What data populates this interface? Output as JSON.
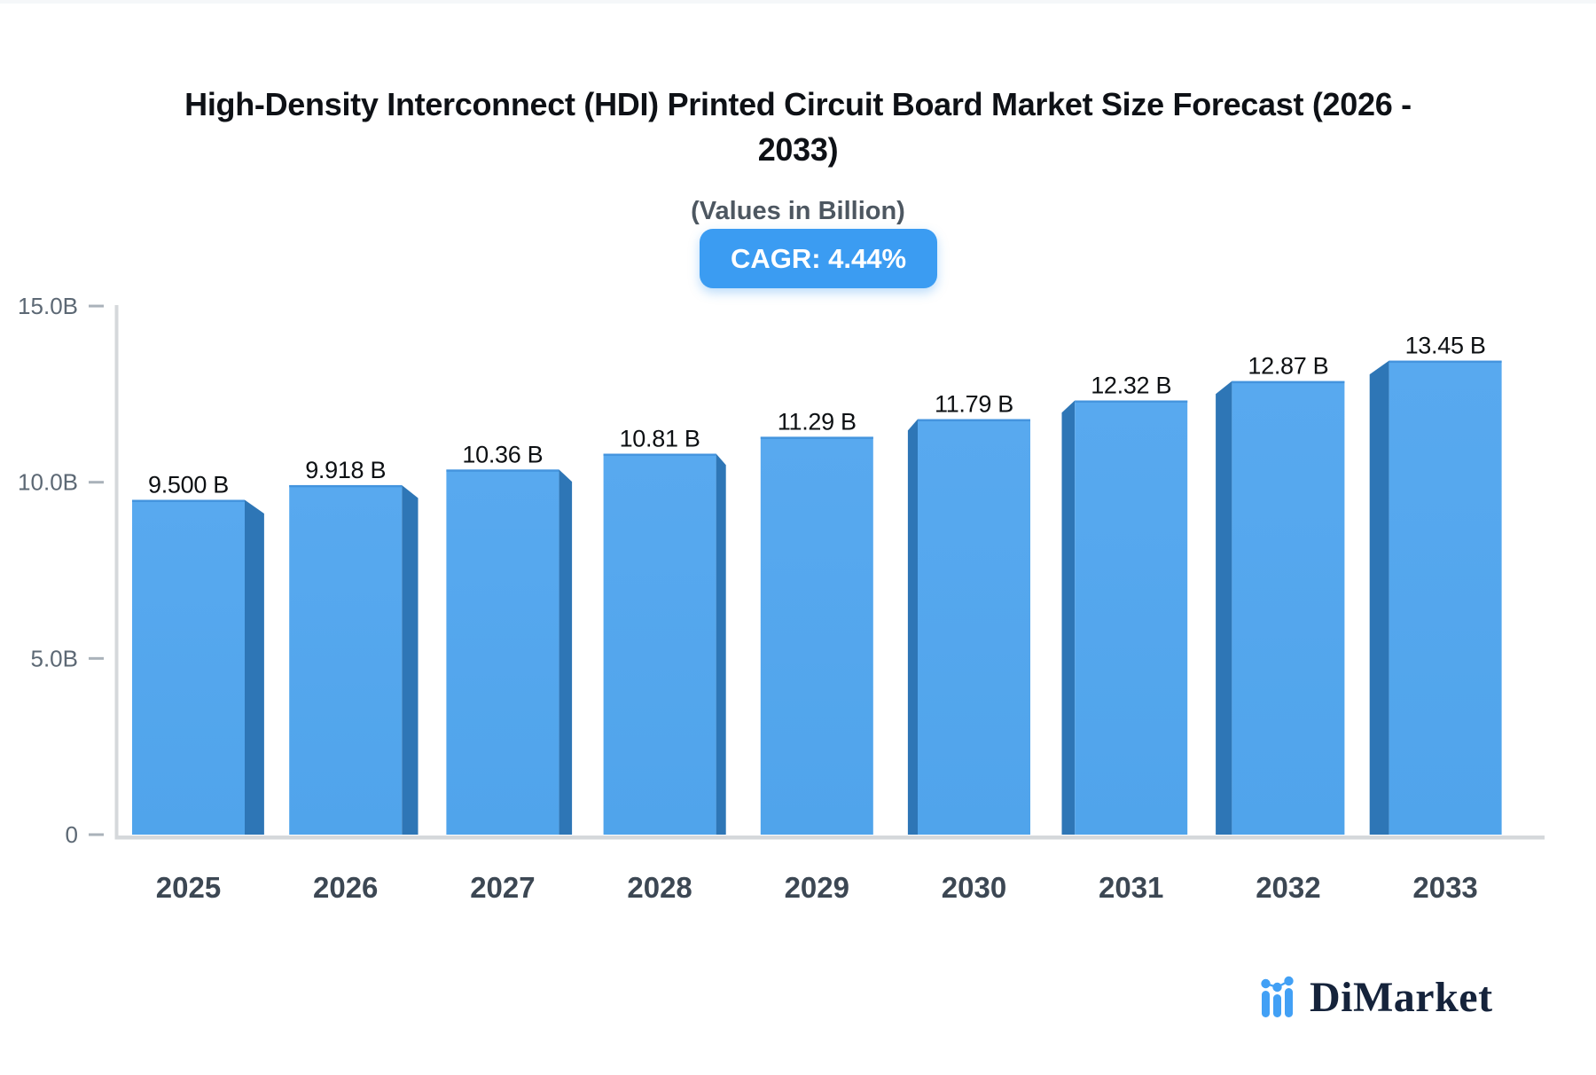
{
  "header": {
    "title_line1": "High-Density Interconnect (HDI) Printed Circuit Board Market Size Forecast (2026 -",
    "title_line2": "2033)",
    "subtitle": "(Values in Billion)",
    "cagr_label": "CAGR: 4.44%"
  },
  "chart_data": {
    "type": "bar",
    "title": "High-Density Interconnect (HDI) Printed Circuit Board Market Size Forecast (2026 - 2033)",
    "subtitle": "(Values in Billion)",
    "cagr": "4.44%",
    "unit": "Billion",
    "categories": [
      "2025",
      "2026",
      "2027",
      "2028",
      "2029",
      "2030",
      "2031",
      "2032",
      "2033"
    ],
    "values": [
      9.5,
      9.918,
      10.36,
      10.81,
      11.29,
      11.79,
      12.32,
      12.87,
      13.45
    ],
    "value_labels": [
      "9.500 B",
      "9.918 B",
      "10.36 B",
      "10.81 B",
      "11.29 B",
      "11.79 B",
      "12.32 B",
      "12.87 B",
      "13.45 B"
    ],
    "xlabel": "",
    "ylabel": "",
    "ylim": [
      0,
      15
    ],
    "yticks": [
      {
        "value": 15,
        "label": "15.0B"
      },
      {
        "value": 10,
        "label": "10.0B"
      },
      {
        "value": 5,
        "label": "5.0B"
      },
      {
        "value": 0,
        "label": "0"
      }
    ],
    "grid": false,
    "legend": false,
    "colors": {
      "bar_face_top": "#58a9ef",
      "bar_face_bottom": "#50a4eb",
      "bar_side": "#2e76b6",
      "bar_top_edge": "#4494de",
      "axis_line": "#d5d8db",
      "tick": "#aab2ba",
      "y_label": "#5c6874",
      "x_label": "#3c4753",
      "value_label": "#0d1013",
      "accent": "#3b9cf2"
    }
  },
  "logo": {
    "text": "DiMarket",
    "icon": "bar-chart-logo-icon",
    "icon_color": "#42a0f5",
    "text_color": "#15233b"
  }
}
